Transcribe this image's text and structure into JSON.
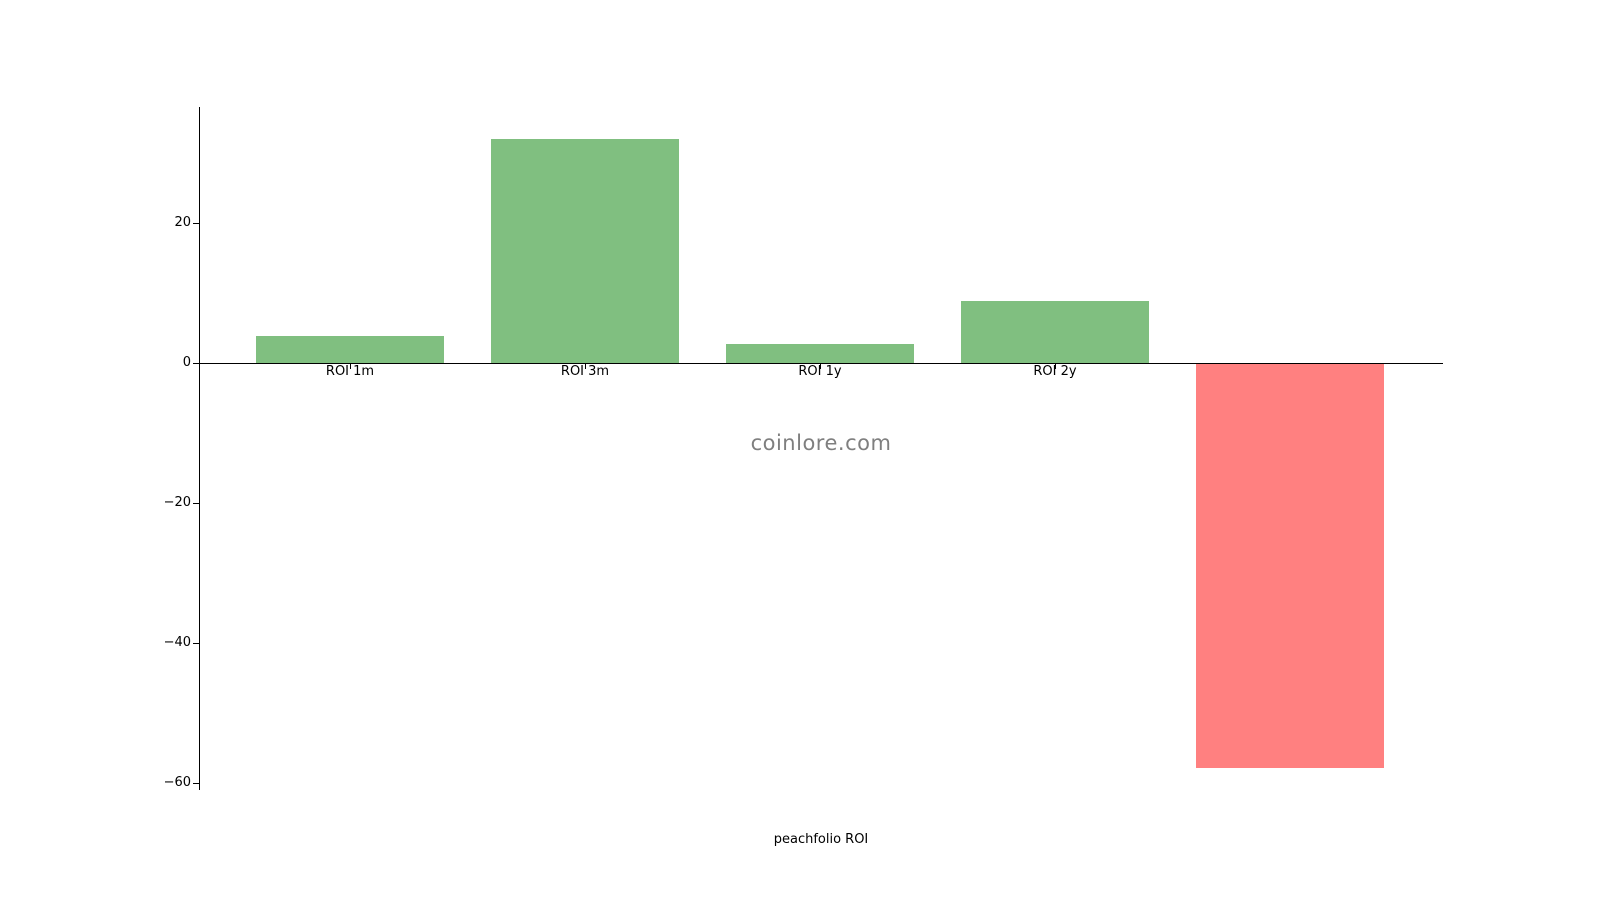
{
  "watermark": "coinlore.com",
  "chart_data": {
    "type": "bar",
    "title": "",
    "xlabel": "peachfolio ROI",
    "ylabel": "",
    "categories": [
      "ROI 1m",
      "ROI 3m",
      "ROI 1y",
      "ROI 2y",
      ""
    ],
    "values": [
      3.9,
      32,
      2.7,
      8.8,
      -57.9
    ],
    "series": [
      {
        "name": "peachfolio ROI",
        "values": [
          3.9,
          32,
          2.7,
          8.8,
          -57.9
        ]
      }
    ],
    "positive_color": "#80bf80",
    "negative_color": "#ff8080",
    "axis_color": "#000000",
    "text_color": "#000000",
    "watermark_color": "#7f7f7f",
    "yticks": [
      20,
      0,
      -20,
      -40,
      -60
    ],
    "ytick_labels": [
      "20",
      "0",
      "−20",
      "−40",
      "−60"
    ],
    "ylim": [
      -61,
      36.5
    ],
    "grid": false,
    "legend": false
  }
}
